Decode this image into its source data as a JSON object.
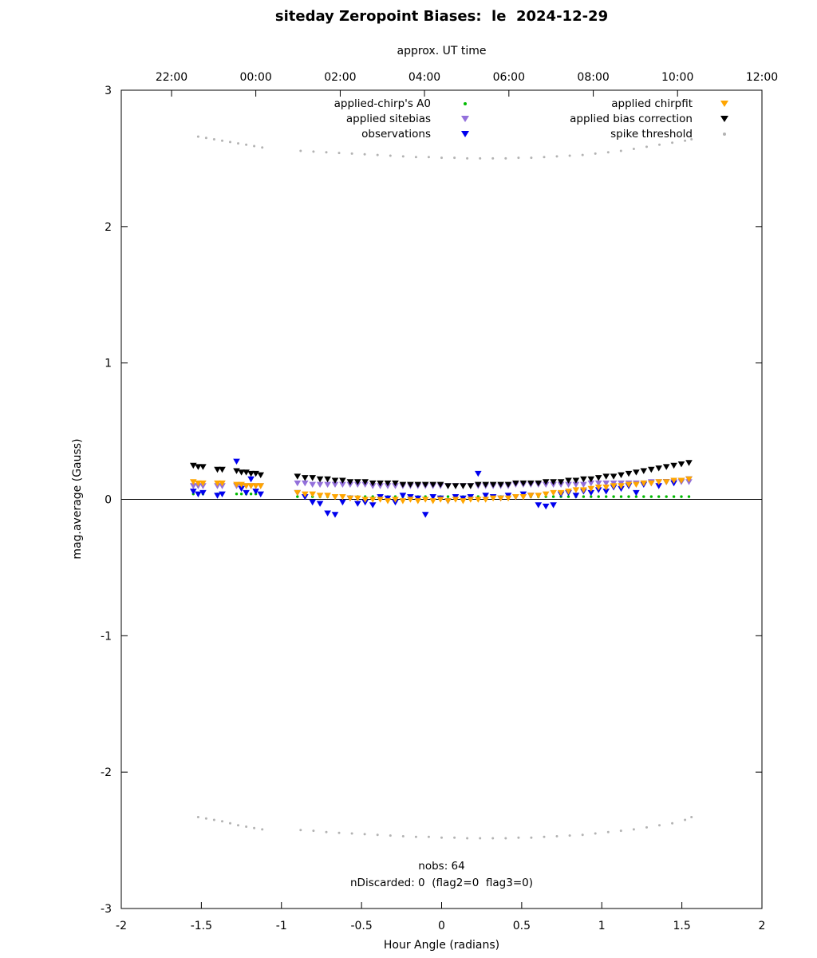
{
  "title": "siteday Zeropoint Biases:  le  2024-12-29",
  "annotations": {
    "nobs": "nobs: 64",
    "ndiscarded": "nDiscarded: 0  (flag2=0  flag3=0)"
  },
  "legend": {
    "entries": [
      {
        "label": "applied-chirp's A0",
        "marker": "dot",
        "color": "#00bb00"
      },
      {
        "label": "applied sitebias",
        "marker": "triangle-down",
        "color": "#9370db"
      },
      {
        "label": "observations",
        "marker": "triangle-down",
        "color": "#0000ee"
      },
      {
        "label": "applied chirpfit",
        "marker": "triangle-down",
        "color": "#ffa500"
      },
      {
        "label": "applied bias correction",
        "marker": "triangle-down",
        "color": "#000000"
      },
      {
        "label": "spike threshold",
        "marker": "dot",
        "color": "#b3b3b3"
      }
    ]
  },
  "chart_data": {
    "type": "scatter",
    "title": "siteday Zeropoint Biases:  le  2024-12-29",
    "xlabel": "Hour Angle (radians)",
    "ylabel": "mag.average (Gauss)",
    "x2label": "approx. UT time",
    "xlim": [
      -2,
      2
    ],
    "ylim": [
      -3,
      3
    ],
    "grid": false,
    "legend_position": "top-inside",
    "nobs": 64,
    "n_discarded": 0,
    "flag2": 0,
    "flag3": 0,
    "zero_line": true,
    "x_ticks": [
      {
        "v": -2,
        "label": "-2"
      },
      {
        "v": -1.5,
        "label": "-1.5"
      },
      {
        "v": -1,
        "label": "-1"
      },
      {
        "v": -0.5,
        "label": "-0.5"
      },
      {
        "v": 0,
        "label": "0"
      },
      {
        "v": 0.5,
        "label": "0.5"
      },
      {
        "v": 1,
        "label": "1"
      },
      {
        "v": 1.5,
        "label": "1.5"
      },
      {
        "v": 2,
        "label": "2"
      }
    ],
    "y_ticks": [
      {
        "v": -3,
        "label": "-3"
      },
      {
        "v": -2,
        "label": "-2"
      },
      {
        "v": -1,
        "label": "-1"
      },
      {
        "v": 0,
        "label": "0"
      },
      {
        "v": 1,
        "label": "1"
      },
      {
        "v": 2,
        "label": "2"
      },
      {
        "v": 3,
        "label": "3"
      }
    ],
    "x2_ticks": [
      {
        "v": -1.686,
        "label": "22:00"
      },
      {
        "v": -1.16,
        "label": "00:00"
      },
      {
        "v": -0.633,
        "label": "02:00"
      },
      {
        "v": -0.107,
        "label": "04:00"
      },
      {
        "v": 0.42,
        "label": "06:00"
      },
      {
        "v": 0.947,
        "label": "08:00"
      },
      {
        "v": 1.473,
        "label": "10:00"
      },
      {
        "v": 2.0,
        "label": "12:00"
      }
    ],
    "x_obs": [
      -1.55,
      -1.52,
      -1.49,
      -1.4,
      -1.37,
      -1.28,
      -1.25,
      -1.22,
      -1.19,
      -1.16,
      -1.13,
      -0.9,
      -0.853,
      -0.806,
      -0.759,
      -0.712,
      -0.665,
      -0.618,
      -0.571,
      -0.524,
      -0.477,
      -0.43,
      -0.383,
      -0.336,
      -0.289,
      -0.242,
      -0.195,
      -0.148,
      -0.101,
      -0.054,
      -0.007,
      0.04,
      0.087,
      0.134,
      0.181,
      0.228,
      0.275,
      0.322,
      0.369,
      0.416,
      0.463,
      0.51,
      0.557,
      0.604,
      0.651,
      0.698,
      0.745,
      0.792,
      0.839,
      0.886,
      0.933,
      0.98,
      1.027,
      1.074,
      1.121,
      1.168,
      1.215,
      1.262,
      1.309,
      1.356,
      1.403,
      1.45,
      1.497,
      1.544
    ],
    "series": [
      {
        "name": "applied-chirp's A0",
        "marker": "dot",
        "size": 1.7,
        "color": "#00bb00",
        "x_ref": "x_obs",
        "y": [
          0.04,
          0.04,
          0.04,
          0.04,
          0.04,
          0.04,
          0.04,
          0.04,
          0.04,
          0.04,
          0.04,
          0.02,
          0.02,
          0.02,
          0.02,
          0.02,
          0.02,
          0.02,
          0.02,
          0.02,
          0.02,
          0.02,
          0.02,
          0.02,
          0.02,
          0.02,
          0.02,
          0.02,
          0.02,
          0.02,
          0.02,
          0.02,
          0.02,
          0.02,
          0.02,
          0.02,
          0.02,
          0.02,
          0.02,
          0.02,
          0.02,
          0.02,
          0.02,
          0.02,
          0.02,
          0.02,
          0.02,
          0.02,
          0.02,
          0.02,
          0.02,
          0.02,
          0.02,
          0.02,
          0.02,
          0.02,
          0.02,
          0.02,
          0.02,
          0.02,
          0.02,
          0.02,
          0.02,
          0.02
        ]
      },
      {
        "name": "applied sitebias",
        "marker": "triangle-down",
        "color": "#9370db",
        "x_ref": "x_obs",
        "y": [
          0.1,
          0.1,
          0.1,
          0.1,
          0.1,
          0.1,
          0.1,
          0.1,
          0.1,
          0.1,
          0.1,
          0.12,
          0.12,
          0.11,
          0.11,
          0.11,
          0.11,
          0.11,
          0.11,
          0.11,
          0.11,
          0.1,
          0.1,
          0.1,
          0.1,
          0.1,
          0.1,
          0.1,
          0.1,
          0.1,
          0.1,
          0.1,
          0.1,
          0.1,
          0.1,
          0.1,
          0.1,
          0.1,
          0.1,
          0.1,
          0.11,
          0.11,
          0.11,
          0.11,
          0.11,
          0.11,
          0.11,
          0.11,
          0.11,
          0.11,
          0.12,
          0.12,
          0.12,
          0.12,
          0.12,
          0.12,
          0.12,
          0.12,
          0.13,
          0.13,
          0.13,
          0.13,
          0.13,
          0.13
        ]
      },
      {
        "name": "observations",
        "marker": "triangle-down",
        "color": "#0000ee",
        "x_ref": "x_obs",
        "y": [
          0.06,
          0.04,
          0.05,
          0.03,
          0.04,
          0.28,
          0.08,
          0.05,
          0.15,
          0.06,
          0.04,
          0.05,
          0.02,
          -0.02,
          -0.03,
          -0.1,
          -0.11,
          -0.02,
          0.01,
          -0.03,
          -0.02,
          -0.04,
          0.02,
          0.01,
          -0.02,
          0.03,
          0.02,
          0.01,
          -0.11,
          0.02,
          0.01,
          -0.01,
          0.02,
          0.01,
          0.02,
          0.19,
          0.03,
          0.02,
          0.01,
          0.03,
          0.02,
          0.04,
          0.03,
          -0.04,
          -0.05,
          -0.04,
          0.04,
          0.05,
          0.03,
          0.06,
          0.05,
          0.07,
          0.06,
          0.09,
          0.08,
          0.1,
          0.05,
          0.11,
          0.12,
          0.1,
          0.13,
          0.12,
          0.14,
          0.15
        ]
      },
      {
        "name": "applied chirpfit",
        "marker": "triangle-down",
        "color": "#ffa500",
        "x_ref": "x_obs",
        "y": [
          0.13,
          0.12,
          0.12,
          0.12,
          0.12,
          0.11,
          0.11,
          0.1,
          0.1,
          0.1,
          0.1,
          0.05,
          0.04,
          0.04,
          0.03,
          0.03,
          0.02,
          0.02,
          0.01,
          0.01,
          0.0,
          0.0,
          0.0,
          -0.01,
          0.0,
          -0.01,
          0.0,
          -0.01,
          0.0,
          -0.01,
          0.0,
          -0.01,
          0.0,
          -0.01,
          0.0,
          0.0,
          0.0,
          0.01,
          0.01,
          0.01,
          0.02,
          0.02,
          0.03,
          0.03,
          0.04,
          0.05,
          0.05,
          0.06,
          0.07,
          0.07,
          0.08,
          0.09,
          0.09,
          0.1,
          0.1,
          0.11,
          0.11,
          0.12,
          0.12,
          0.13,
          0.13,
          0.14,
          0.14,
          0.15
        ]
      },
      {
        "name": "applied bias correction",
        "marker": "triangle-down",
        "color": "#000000",
        "x_ref": "x_obs",
        "y": [
          0.25,
          0.24,
          0.24,
          0.22,
          0.22,
          0.21,
          0.2,
          0.2,
          0.19,
          0.19,
          0.18,
          0.17,
          0.16,
          0.16,
          0.15,
          0.15,
          0.14,
          0.14,
          0.13,
          0.13,
          0.13,
          0.12,
          0.12,
          0.12,
          0.12,
          0.11,
          0.11,
          0.11,
          0.11,
          0.11,
          0.11,
          0.1,
          0.1,
          0.1,
          0.1,
          0.11,
          0.11,
          0.11,
          0.11,
          0.11,
          0.12,
          0.12,
          0.12,
          0.12,
          0.13,
          0.13,
          0.13,
          0.14,
          0.14,
          0.15,
          0.15,
          0.16,
          0.17,
          0.17,
          0.18,
          0.19,
          0.2,
          0.21,
          0.22,
          0.23,
          0.24,
          0.25,
          0.26,
          0.27
        ]
      },
      {
        "name": "spike threshold",
        "marker": "dot",
        "size": 1.5,
        "color": "#b3b3b3",
        "x": [
          -1.52,
          -1.47,
          -1.42,
          -1.37,
          -1.32,
          -1.27,
          -1.22,
          -1.17,
          -1.12,
          -0.88,
          -0.8,
          -0.72,
          -0.64,
          -0.56,
          -0.48,
          -0.4,
          -0.32,
          -0.24,
          -0.16,
          -0.08,
          0.0,
          0.08,
          0.16,
          0.24,
          0.32,
          0.4,
          0.48,
          0.56,
          0.64,
          0.72,
          0.8,
          0.88,
          0.96,
          1.04,
          1.12,
          1.2,
          1.28,
          1.36,
          1.44,
          1.52,
          1.56,
          -1.52,
          -1.47,
          -1.42,
          -1.37,
          -1.32,
          -1.27,
          -1.22,
          -1.17,
          -1.12,
          -0.88,
          -0.8,
          -0.72,
          -0.64,
          -0.56,
          -0.48,
          -0.4,
          -0.32,
          -0.24,
          -0.16,
          -0.08,
          0.0,
          0.08,
          0.16,
          0.24,
          0.32,
          0.4,
          0.48,
          0.56,
          0.64,
          0.72,
          0.8,
          0.88,
          0.96,
          1.04,
          1.12,
          1.2,
          1.28,
          1.36,
          1.44,
          1.52,
          1.56
        ],
        "y": [
          2.66,
          2.65,
          2.64,
          2.63,
          2.62,
          2.61,
          2.6,
          2.59,
          2.58,
          2.555,
          2.55,
          2.545,
          2.54,
          2.535,
          2.53,
          2.525,
          2.52,
          2.515,
          2.51,
          2.51,
          2.505,
          2.505,
          2.5,
          2.5,
          2.5,
          2.5,
          2.505,
          2.505,
          2.51,
          2.515,
          2.52,
          2.525,
          2.535,
          2.545,
          2.555,
          2.57,
          2.585,
          2.6,
          2.615,
          2.63,
          2.64,
          -2.33,
          -2.34,
          -2.35,
          -2.36,
          -2.375,
          -2.39,
          -2.4,
          -2.41,
          -2.42,
          -2.425,
          -2.43,
          -2.44,
          -2.445,
          -2.45,
          -2.455,
          -2.46,
          -2.465,
          -2.47,
          -2.475,
          -2.475,
          -2.48,
          -2.48,
          -2.485,
          -2.485,
          -2.485,
          -2.485,
          -2.48,
          -2.48,
          -2.475,
          -2.47,
          -2.465,
          -2.46,
          -2.45,
          -2.44,
          -2.43,
          -2.42,
          -2.405,
          -2.39,
          -2.375,
          -2.35,
          -2.33
        ]
      }
    ]
  }
}
